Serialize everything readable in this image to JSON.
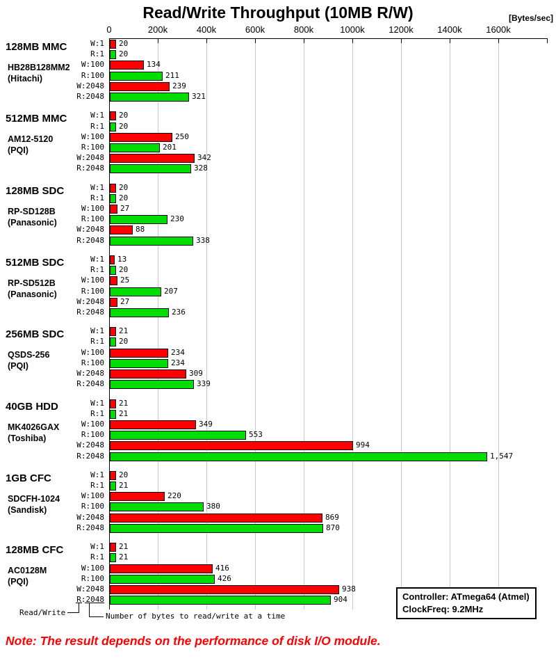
{
  "title": "Read/Write Throughput (10MB R/W)",
  "axis_unit": "[Bytes/sec]",
  "legend": {
    "read_write": "Read/Write",
    "bytes_at_a_time": "Number of bytes to read/write at a time"
  },
  "info_box": {
    "line1": "Controller: ATmega64 (Atmel)",
    "line2": "ClockFreq: 9.2MHz"
  },
  "note": "Note: The result depends on the performance of disk I/O module.",
  "chart_data": {
    "type": "bar",
    "orientation": "horizontal",
    "title": "Read/Write Throughput (10MB R/W)",
    "xlabel": "[Bytes/sec]",
    "x_axis": {
      "tick_labels": [
        "0",
        "200k",
        "400k",
        "600k",
        "800k",
        "1000k",
        "1200k",
        "1400k",
        "1600k"
      ],
      "tick_values": [
        0,
        200000,
        400000,
        600000,
        800000,
        1000000,
        1200000,
        1400000,
        1600000
      ],
      "max_value": 1800000,
      "grid": true
    },
    "bar_labels": [
      "W:1",
      "R:1",
      "W:100",
      "R:100",
      "W:2048",
      "R:2048"
    ],
    "value_unit": "displayed bar numbers are in units of 1000 Bytes/sec",
    "colors": {
      "write": "#FF0000",
      "read": "#00DD00",
      "bar_border": "#000000",
      "gridline": "#C9C9C9",
      "note_text": "#FF0000"
    },
    "groups": [
      {
        "capacity": "128MB MMC",
        "model": "HB28B128MM2",
        "brand": "(Hitachi)",
        "values": [
          20,
          20,
          134,
          211,
          239,
          321
        ]
      },
      {
        "capacity": "512MB MMC",
        "model": "AM12-5120",
        "brand": "(PQI)",
        "values": [
          20,
          20,
          250,
          201,
          342,
          328
        ]
      },
      {
        "capacity": "128MB SDC",
        "model": "RP-SD128B",
        "brand": "(Panasonic)",
        "values": [
          20,
          20,
          27,
          230,
          88,
          338
        ]
      },
      {
        "capacity": "512MB SDC",
        "model": "RP-SD512B",
        "brand": "(Panasonic)",
        "values": [
          13,
          20,
          25,
          207,
          27,
          236
        ]
      },
      {
        "capacity": "256MB SDC",
        "model": "QSDS-256",
        "brand": "(PQI)",
        "values": [
          21,
          20,
          234,
          234,
          309,
          339
        ]
      },
      {
        "capacity": "40GB HDD",
        "model": "MK4026GAX",
        "brand": "(Toshiba)",
        "values": [
          21,
          21,
          349,
          553,
          994,
          1547
        ]
      },
      {
        "capacity": "1GB CFC",
        "model": "SDCFH-1024",
        "brand": "(Sandisk)",
        "values": [
          20,
          21,
          220,
          380,
          869,
          870
        ]
      },
      {
        "capacity": "128MB CFC",
        "model": "AC0128M",
        "brand": "(PQI)",
        "values": [
          21,
          21,
          416,
          426,
          938,
          904
        ]
      }
    ]
  }
}
